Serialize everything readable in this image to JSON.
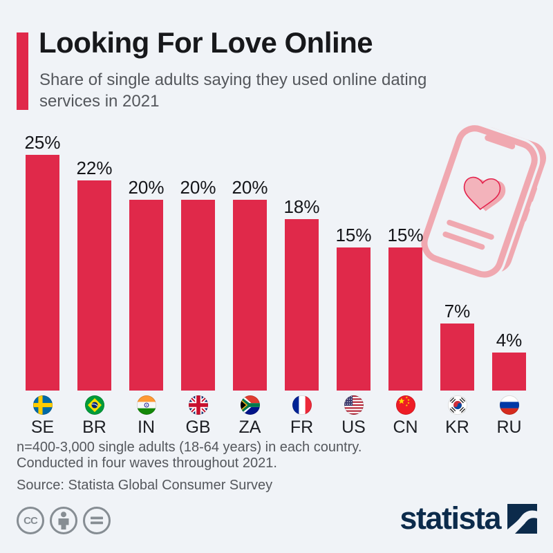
{
  "page": {
    "background": "#f0f3f7"
  },
  "header": {
    "title": "Looking For Love Online",
    "subtitle_line1": "Share of single adults saying they used online dating",
    "subtitle_line2": "services in 2021",
    "accent_color": "#e0294a"
  },
  "chart_data": {
    "type": "bar",
    "title": "Looking For Love Online",
    "subtitle": "Share of single adults saying they used online dating services in 2021",
    "unit": "%",
    "categories": [
      "SE",
      "BR",
      "IN",
      "GB",
      "ZA",
      "FR",
      "US",
      "CN",
      "KR",
      "RU"
    ],
    "values": [
      25,
      22,
      20,
      20,
      20,
      18,
      15,
      15,
      7,
      4
    ],
    "value_labels": [
      "25%",
      "22%",
      "20%",
      "20%",
      "20%",
      "18%",
      "15%",
      "15%",
      "7%",
      "4%"
    ],
    "flag_icons": [
      "se-flag-icon",
      "br-flag-icon",
      "in-flag-icon",
      "gb-flag-icon",
      "za-flag-icon",
      "fr-flag-icon",
      "us-flag-icon",
      "cn-flag-icon",
      "kr-flag-icon",
      "ru-flag-icon"
    ],
    "bar_color": "#e0294a",
    "ylim": [
      0,
      25
    ],
    "grid": false,
    "legend": null
  },
  "illustration": {
    "name": "smartphone-with-heart-illustration",
    "color": "#f0a8b0",
    "heart_fill": "#f3b3bb",
    "heart_outline": "#e3234d"
  },
  "footnote": {
    "line1": "n=400-3,000 single adults (18-64 years) in each country.",
    "line2": "Conducted in four waves throughout 2021.",
    "source": "Source: Statista Global Consumer Survey"
  },
  "footer": {
    "cc_label": "CC",
    "license_icons": [
      "cc-icon",
      "attribution-person-icon",
      "no-derivatives-equals-icon"
    ],
    "brand": "statista",
    "brand_color": "#0c2b4b",
    "icon_color": "#868d93"
  }
}
